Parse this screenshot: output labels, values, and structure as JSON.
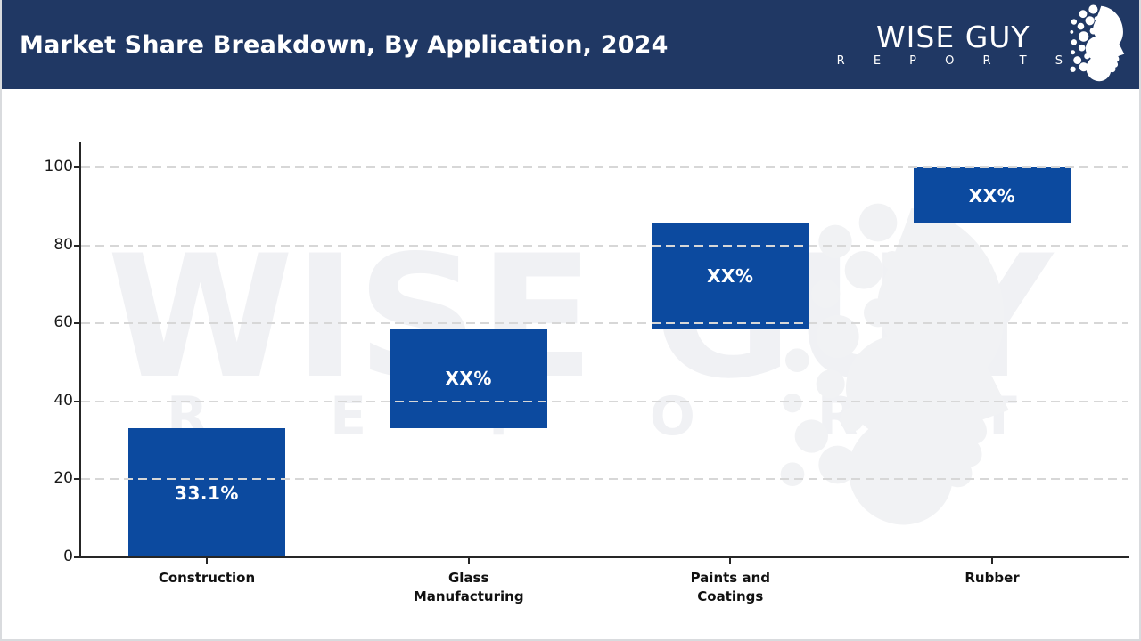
{
  "header": {
    "title": "Market Share Breakdown, By Application, 2024",
    "logo": {
      "line1": "WISE GUY",
      "line2": "R E P O R T S"
    }
  },
  "watermark": {
    "line1": "WISE GUY",
    "line2": "R E P O R T S"
  },
  "chart_data": {
    "type": "bar",
    "subtype": "waterfall",
    "title": "Market Share Breakdown, By Application, 2024",
    "xlabel": "",
    "ylabel": "",
    "ylim": [
      0,
      106
    ],
    "yticks": [
      0,
      20,
      40,
      60,
      80,
      100
    ],
    "grid": "horizontal dashed, drawn above bars",
    "legend": "none",
    "bar_color": "#0c4a9f",
    "bar_label_color": "#ffffff",
    "categories": [
      "Construction",
      "Glass Manufacturing",
      "Paints and Coatings",
      "Rubber"
    ],
    "category_lines": [
      [
        "Construction"
      ],
      [
        "Glass",
        "Manufacturing"
      ],
      [
        "Paints and",
        "Coatings"
      ],
      [
        "Rubber"
      ]
    ],
    "segments": [
      {
        "category": "Construction",
        "start": 0,
        "end": 33.1,
        "label": "33.1%"
      },
      {
        "category": "Glass Manufacturing",
        "start": 33.1,
        "end": 58.6,
        "label": "XX%"
      },
      {
        "category": "Paints and Coatings",
        "start": 58.6,
        "end": 85.6,
        "label": "XX%"
      },
      {
        "category": "Rubber",
        "start": 85.6,
        "end": 100,
        "label": "XX%"
      }
    ]
  }
}
